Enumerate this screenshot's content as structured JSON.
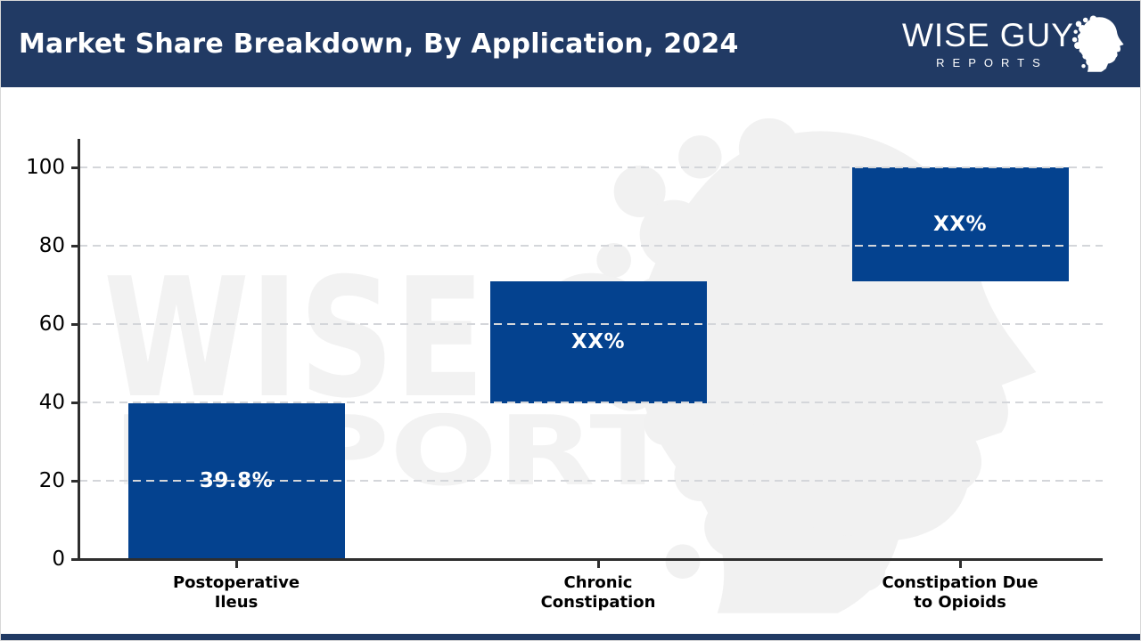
{
  "header": {
    "title": "Market Share Breakdown, By Application, 2024",
    "logo": {
      "line1": "WISE GUY",
      "line2": "REPORTS"
    }
  },
  "watermark": {
    "line1": "WISE GUY",
    "line2": "REPORTS"
  },
  "colors": {
    "header_bg": "#213a64",
    "bar": "#04428f",
    "grid_dash": "#d4d6da",
    "axis": "#2e2e2e",
    "value_label": "#ffffff",
    "watermark": "#f2f2f2"
  },
  "chart_data": {
    "type": "bar",
    "variant": "floating-segment-bars (waterfall-style market share)",
    "title": "Market Share Breakdown, By Application, 2024",
    "categories": [
      "Postoperative Ileus",
      "Chronic Constipation",
      "Constipation Due to Opioids"
    ],
    "categories_lines": [
      [
        "Postoperative",
        "Ileus"
      ],
      [
        "Chronic",
        "Constipation"
      ],
      [
        "Constipation Due",
        "to Opioids"
      ]
    ],
    "segments": [
      {
        "category": "Postoperative Ileus",
        "start": 0,
        "end": 39.8,
        "label": "39.8%"
      },
      {
        "category": "Chronic Constipation",
        "start": 39.8,
        "end": 71,
        "label": "XX%"
      },
      {
        "category": "Constipation Due to Opioids",
        "start": 71,
        "end": 100,
        "label": "XX%"
      }
    ],
    "xlabel": "",
    "ylabel": "",
    "ylim": [
      0,
      100
    ],
    "yticks": [
      0,
      20,
      40,
      60,
      80,
      100
    ],
    "grid": "horizontal-dashed",
    "legend": "none"
  }
}
